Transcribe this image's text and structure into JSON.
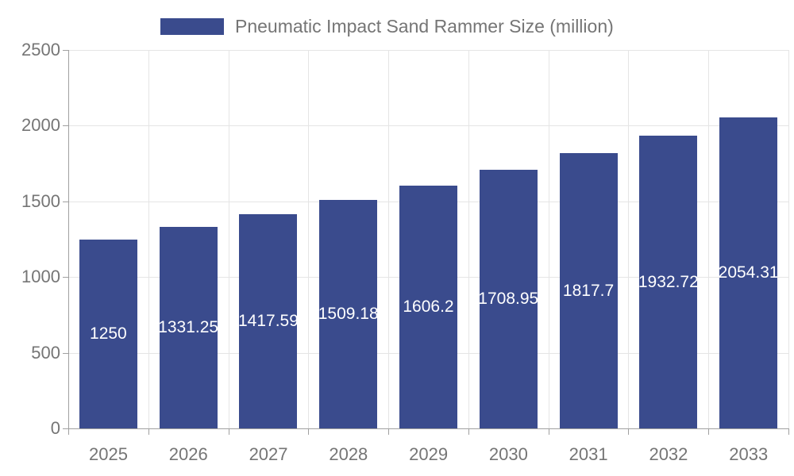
{
  "legend": {
    "label": "Pneumatic Impact Sand Rammer Size (million)",
    "swatch_color": "#3A4B8D"
  },
  "chart_data": {
    "type": "bar",
    "title": "Pneumatic Impact Sand Rammer Size (million)",
    "categories": [
      "2025",
      "2026",
      "2027",
      "2028",
      "2029",
      "2030",
      "2031",
      "2032",
      "2033"
    ],
    "values": [
      1250,
      1331.25,
      1417.59,
      1509.18,
      1606.2,
      1708.95,
      1817.7,
      1932.72,
      2054.31
    ],
    "bar_labels": [
      "1250",
      "1331.25",
      "1417.59",
      "1509.18",
      "1606.2",
      "1708.95",
      "1817.7",
      "1932.72",
      "2054.31"
    ],
    "xlabel": "",
    "ylabel": "",
    "ylim": [
      0,
      2500
    ],
    "yticks": [
      0,
      500,
      1000,
      1500,
      2000,
      2500
    ],
    "grid": true,
    "legend_position": "top",
    "bar_color": "#3A4B8D",
    "bar_label_color": "#ffffff",
    "tick_text_color": "#757575",
    "grid_color": "#e5e5e5",
    "axis_color": "#a0a0a0",
    "background_color": "#ffffff"
  }
}
